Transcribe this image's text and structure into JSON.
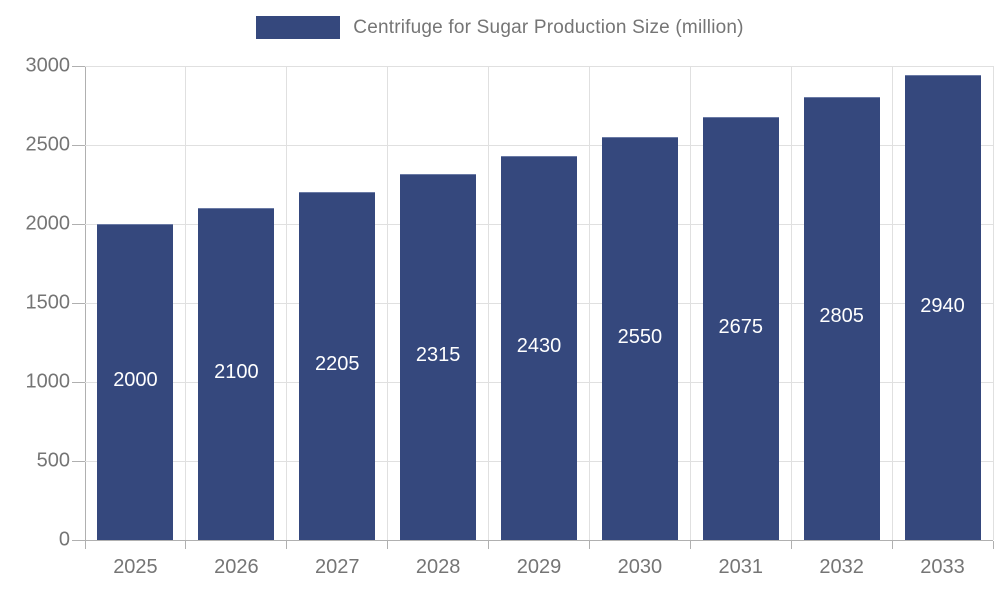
{
  "chart_data": {
    "type": "bar",
    "title": "Centrifuge for Sugar Production Size (million)",
    "categories": [
      "2025",
      "2026",
      "2027",
      "2028",
      "2029",
      "2030",
      "2031",
      "2032",
      "2033"
    ],
    "values": [
      2000,
      2100,
      2205,
      2315,
      2430,
      2550,
      2675,
      2805,
      2940
    ],
    "xlabel": "",
    "ylabel": "",
    "ylim": [
      0,
      3000
    ],
    "yticks": [
      0,
      500,
      1000,
      1500,
      2000,
      2500,
      3000
    ],
    "grid": "on",
    "legend_position": "top-center",
    "bar_color": "#35487d",
    "bar_label_color": "#ffffff",
    "axis_text_color": "#757575",
    "gridline_color": "#e0e0e0",
    "axis_line_color": "#b0b0b0"
  }
}
